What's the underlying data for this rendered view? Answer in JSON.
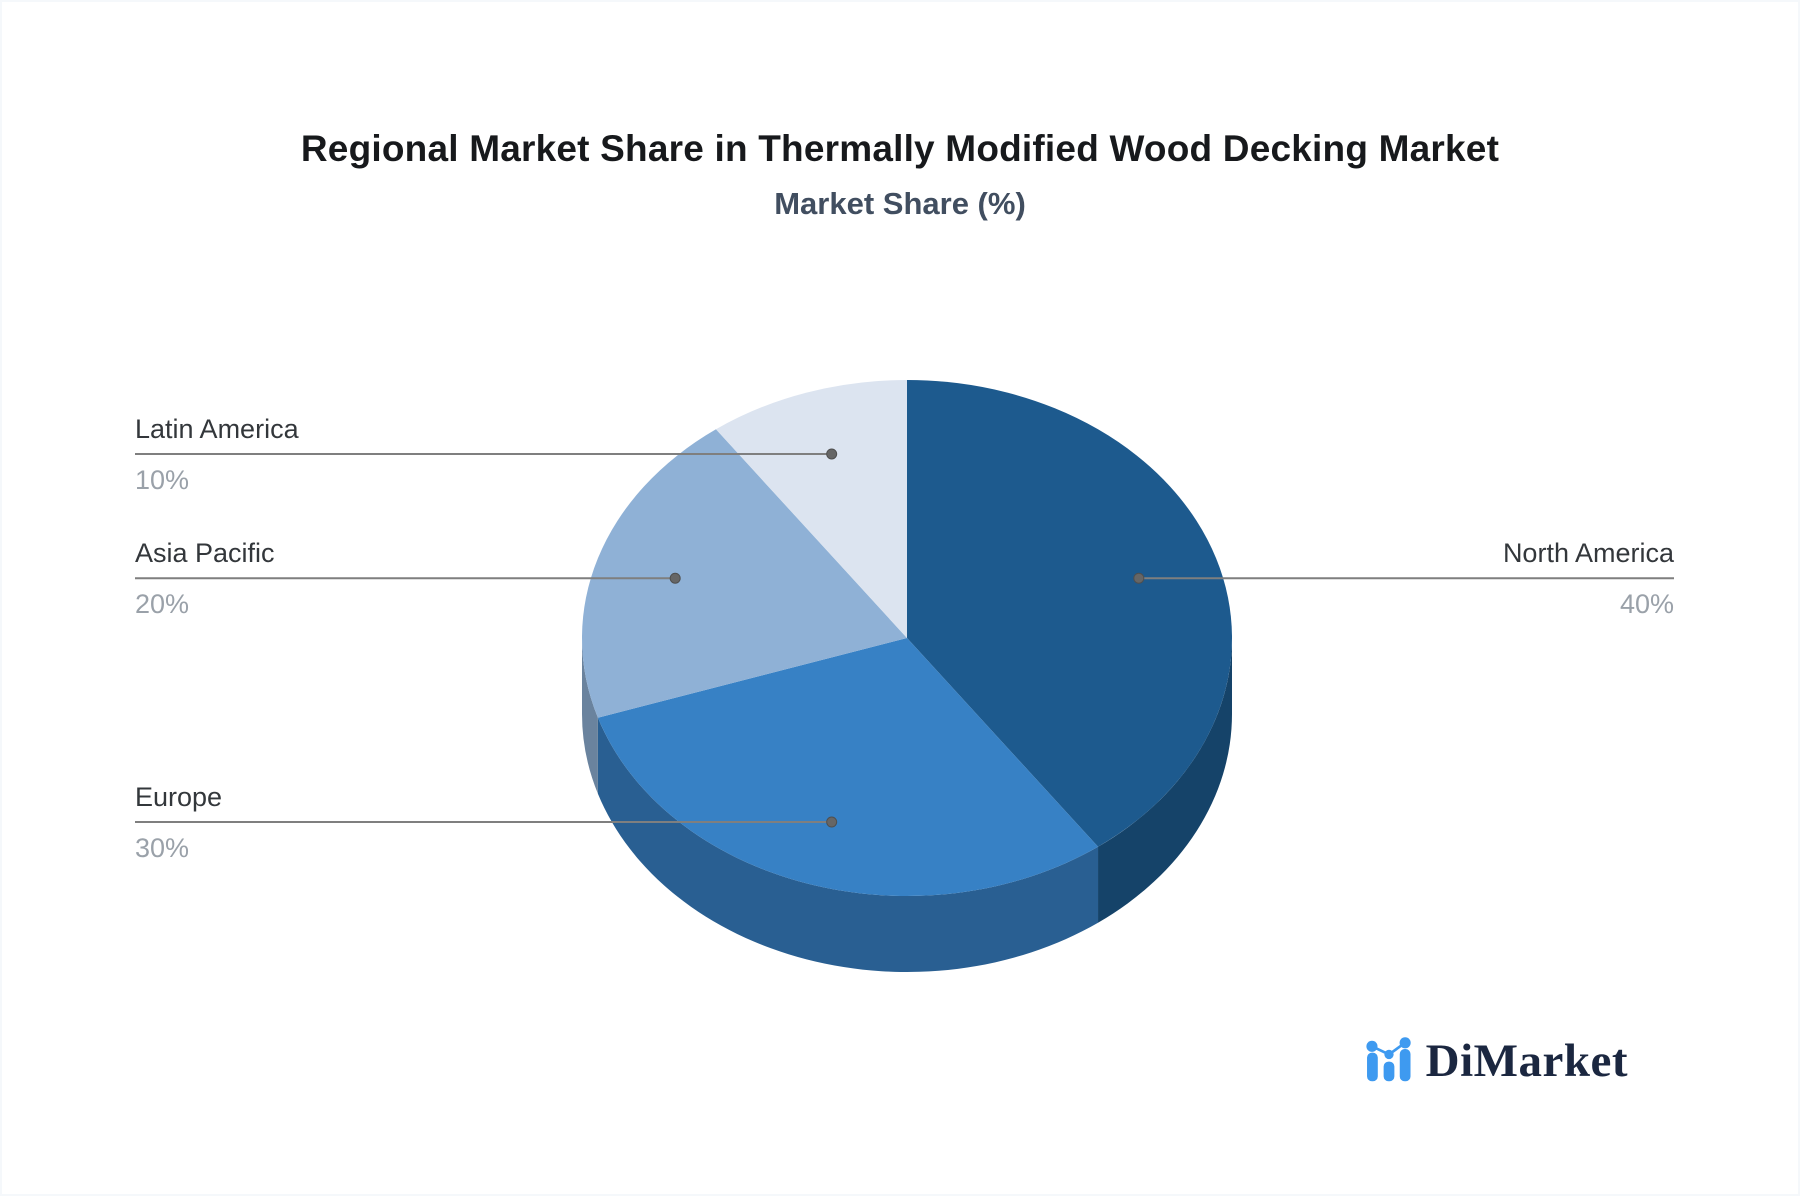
{
  "chart_data": {
    "type": "pie",
    "title": "Regional Market Share in Thermally Modified Wood Decking Market",
    "subtitle": "Market Share (%)",
    "unit": "%",
    "categories": [
      "North America",
      "Europe",
      "Asia Pacific",
      "Latin America"
    ],
    "values": [
      40,
      30,
      20,
      10
    ],
    "slices": [
      {
        "label": "North America",
        "value": 40,
        "value_label": "40%",
        "color": "#1d5a8e"
      },
      {
        "label": "Europe",
        "value": 30,
        "value_label": "30%",
        "color": "#3781c5"
      },
      {
        "label": "Asia Pacific",
        "value": 20,
        "value_label": "20%",
        "color": "#8fb1d6"
      },
      {
        "label": "Latin America",
        "value": 10,
        "value_label": "10%",
        "color": "#dce4f0"
      }
    ],
    "style": {
      "effect": "3d",
      "start_angle_deg": 0,
      "direction": "clockwise",
      "callout_line_color": "#7f7f7f",
      "callout_dot_color": "#666666",
      "label_text_color": "#33373b",
      "value_text_color": "#9aa1a9",
      "title_color": "#17191c",
      "subtitle_color": "#414e60"
    },
    "legend": "callout-labels"
  },
  "logo": {
    "text": "DiMarket",
    "icon": "combo-bar-line-chart-icon",
    "text_color": "#1b2740",
    "icon_color": "#3e9af0"
  }
}
